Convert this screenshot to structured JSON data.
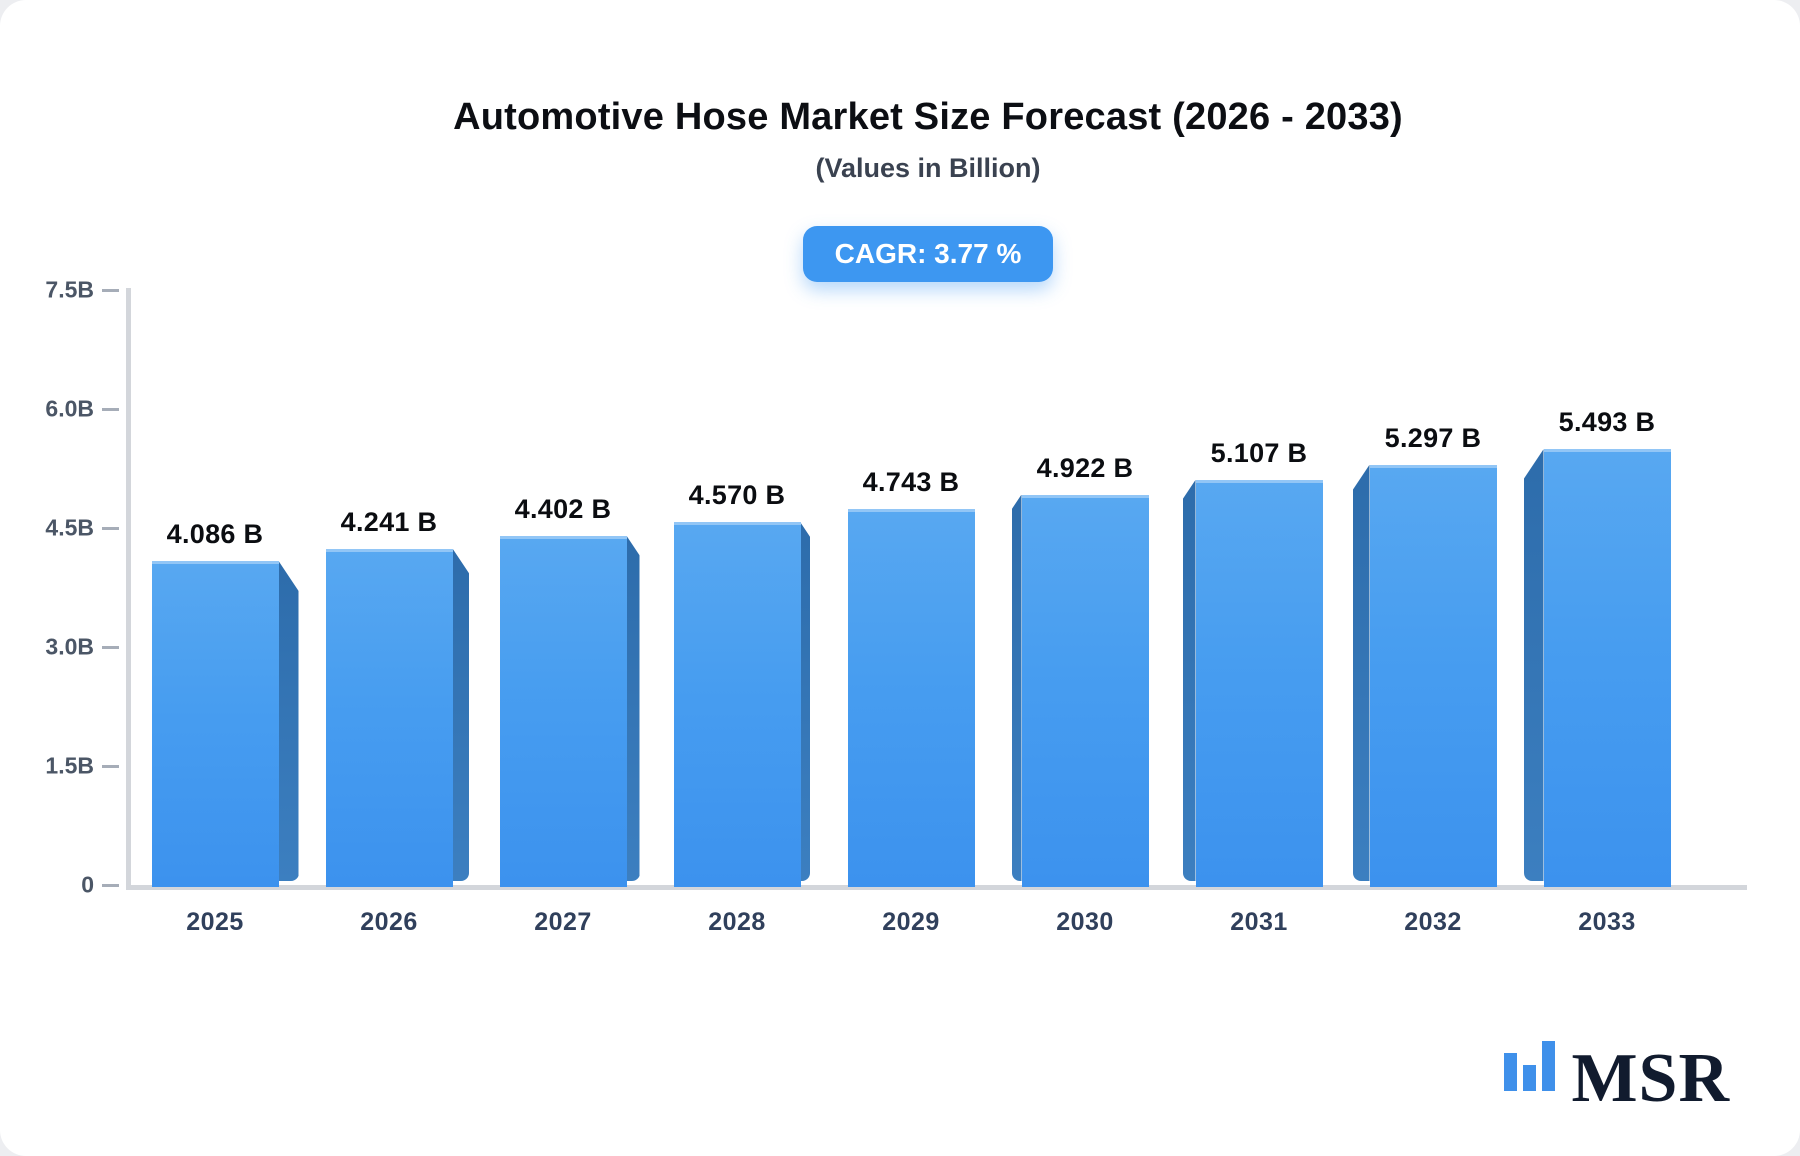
{
  "header": {
    "title": "Automotive Hose Market Size Forecast (2026 - 2033)",
    "subtitle": "(Values in Billion)",
    "cagr_badge": "CAGR: 3.77 %"
  },
  "chart_data": {
    "type": "bar",
    "title": "Automotive Hose Market Size Forecast (2026 - 2033)",
    "subtitle": "(Values in Billion)",
    "cagr_percent": 3.77,
    "categories": [
      "2025",
      "2026",
      "2027",
      "2028",
      "2029",
      "2030",
      "2031",
      "2032",
      "2033"
    ],
    "values": [
      4.086,
      4.241,
      4.402,
      4.57,
      4.743,
      4.922,
      5.107,
      5.297,
      5.493
    ],
    "bar_labels": [
      "4.086 B",
      "4.241 B",
      "4.402 B",
      "4.570 B",
      "4.743 B",
      "4.922 B",
      "5.107 B",
      "5.297 B",
      "5.493 B"
    ],
    "y_tick_labels": [
      "0",
      "1.5B",
      "3.0B",
      "4.5B",
      "6.0B",
      "7.5B"
    ],
    "y_tick_values": [
      0,
      1.5,
      3.0,
      4.5,
      6.0,
      7.5
    ],
    "ylim": [
      0,
      7.5
    ],
    "xlabel": "",
    "ylabel": "",
    "grid": false,
    "legend": false,
    "bar_color_top": "#58a8f1",
    "bar_color_bottom": "#3c92ee",
    "bar_side_color": "#2d6cab",
    "badge_color": "#3d97f1"
  },
  "logo": {
    "text": "MSR"
  }
}
